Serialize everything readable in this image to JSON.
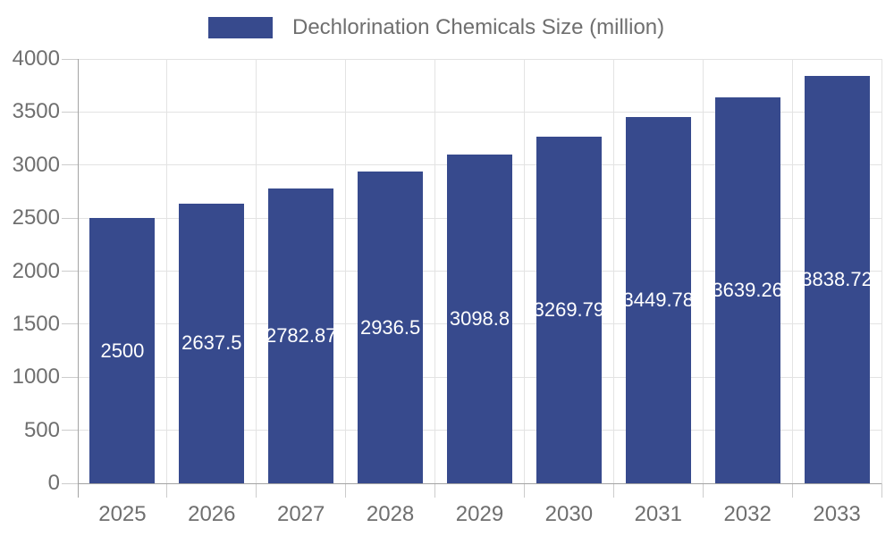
{
  "legend": {
    "label": "Dechlorination Chemicals Size (million)"
  },
  "chart_data": {
    "type": "bar",
    "title": "Dechlorination Chemicals Size (million)",
    "categories": [
      "2025",
      "2026",
      "2027",
      "2028",
      "2029",
      "2030",
      "2031",
      "2032",
      "2033"
    ],
    "values": [
      2500,
      2637.5,
      2782.87,
      2936.5,
      3098.8,
      3269.79,
      3449.78,
      3639.26,
      3838.72
    ],
    "value_labels": [
      "2500",
      "2637.5",
      "2782.87",
      "2936.5",
      "3098.8",
      "3269.79",
      "3449.78",
      "3639.26",
      "3838.72"
    ],
    "xlabel": "",
    "ylabel": "",
    "ylim": [
      0,
      4000
    ],
    "yticks": [
      0,
      500,
      1000,
      1500,
      2000,
      2500,
      3000,
      3500,
      4000
    ],
    "grid": true,
    "legend_position": "top",
    "bar_color": "#374A8D",
    "value_label_color": "#ffffff"
  }
}
